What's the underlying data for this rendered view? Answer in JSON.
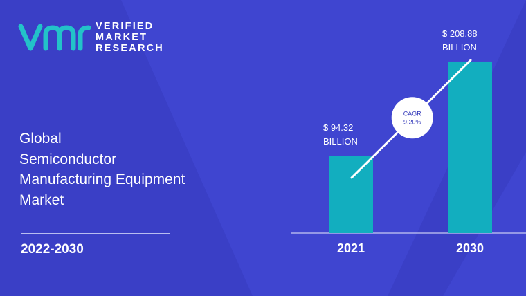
{
  "brand": {
    "line1": "VERIFIED",
    "line2": "MARKET",
    "line3": "RESEARCH"
  },
  "title_lines": [
    "Global",
    "Semiconductor",
    "Manufacturing Equipment",
    "Market"
  ],
  "period": "2022-2030",
  "colors": {
    "background": "#3f45d0",
    "background_shape": "#3a3fc6",
    "bar": "#12aebf",
    "logo_teal": "#23c2c9",
    "text": "#ffffff"
  },
  "chart_data": {
    "type": "bar",
    "categories": [
      "2021",
      "2030"
    ],
    "values": [
      94.32,
      208.88
    ],
    "unit": "BILLION",
    "data_labels": [
      {
        "value": "$ 94.32",
        "unit": "BILLION"
      },
      {
        "value": "$ 208.88",
        "unit": "BILLION"
      }
    ],
    "cagr": {
      "label": "CAGR",
      "value": "9.20%"
    },
    "ylim": [
      0,
      240
    ],
    "grid": false,
    "legend": "none"
  }
}
